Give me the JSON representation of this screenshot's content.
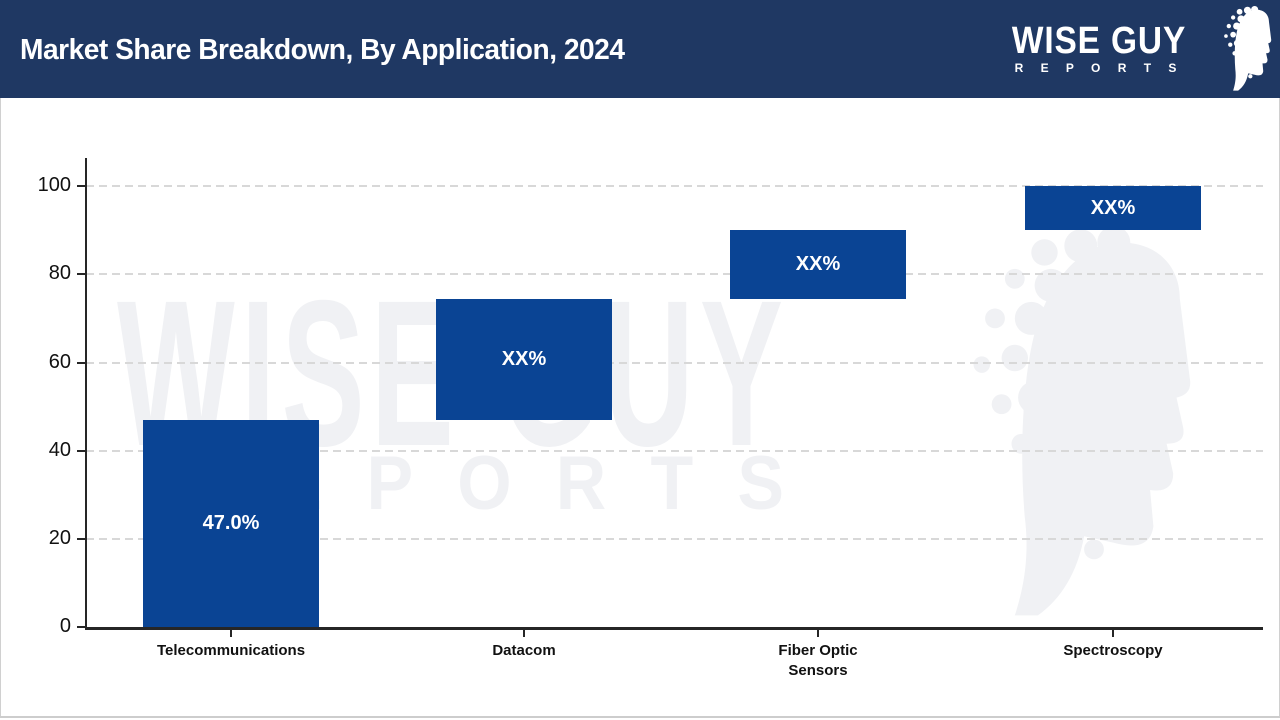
{
  "header": {
    "title": "Market Share Breakdown, By Application, 2024",
    "bg_color": "#1f3863",
    "logo": {
      "line1": "WISE GUY",
      "line2": "R E P O R T S"
    }
  },
  "watermark": {
    "line1": "WISE GUY",
    "line2": "REPORTS"
  },
  "chart_data": {
    "type": "bar",
    "subtype": "waterfall",
    "title": "Market Share Breakdown, By Application, 2024",
    "categories": [
      "Telecommunications",
      "Datacom",
      "Fiber Optic\nSensors",
      "Spectroscopy"
    ],
    "segments": [
      {
        "category": "Telecommunications",
        "start": 0,
        "end": 47,
        "label": "47.0%"
      },
      {
        "category": "Datacom",
        "start": 47,
        "end": 74.5,
        "label": "XX%"
      },
      {
        "category": "Fiber Optic Sensors",
        "start": 74.5,
        "end": 90,
        "label": "XX%"
      },
      {
        "category": "Spectroscopy",
        "start": 90,
        "end": 100,
        "label": "XX%"
      }
    ],
    "values_masked_except_first": true,
    "xlabel": "",
    "ylabel": "",
    "ylim": [
      0,
      105
    ],
    "yticks": [
      0,
      20,
      40,
      60,
      80,
      100
    ],
    "grid": "horizontal-dashed",
    "legend": "none",
    "bar_color": "#0a4494",
    "bar_label_color": "#ffffff",
    "axis_color": "#262626",
    "gridline_color": "#d8d8d8"
  }
}
